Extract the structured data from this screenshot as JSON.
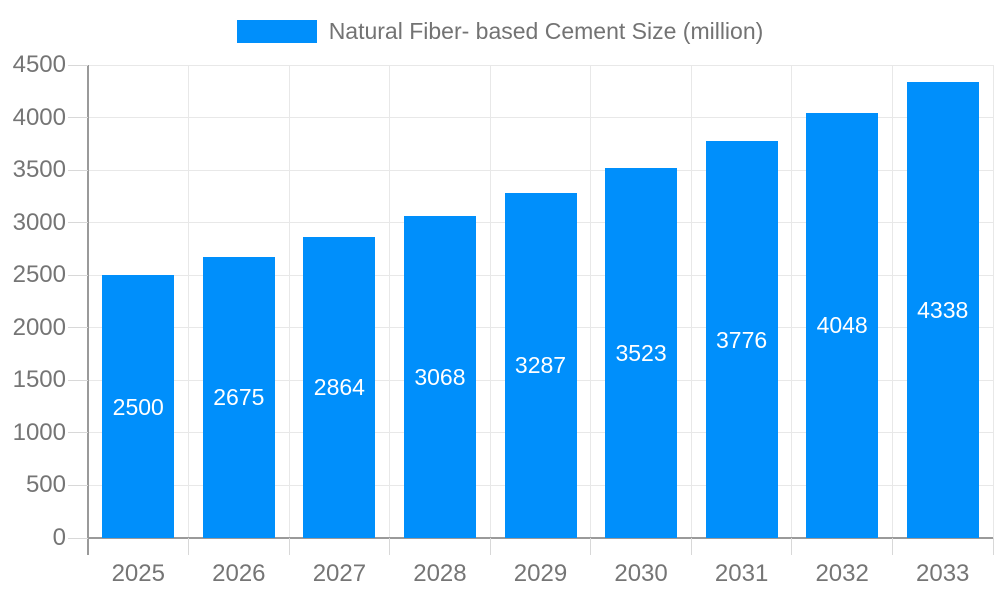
{
  "legend": {
    "label": "Natural Fiber- based Cement Size (million)"
  },
  "colors": {
    "bar": "#008FFB",
    "grid": "#e8e8e8",
    "axis": "#9a9a9a",
    "tick": "#d8d8d8",
    "axis_text": "#757575",
    "value_text": "#ffffff",
    "legend_text": "#737373"
  },
  "chart_data": {
    "type": "bar",
    "title": "Natural Fiber- based Cement Size (million)",
    "categories": [
      "2025",
      "2026",
      "2027",
      "2028",
      "2029",
      "2030",
      "2031",
      "2032",
      "2033"
    ],
    "values": [
      2500,
      2675,
      2864,
      3068,
      3287,
      3523,
      3776,
      4048,
      4338
    ],
    "series": [
      {
        "name": "Natural Fiber- based Cement Size (million)",
        "values": [
          2500,
          2675,
          2864,
          3068,
          3287,
          3523,
          3776,
          4048,
          4338
        ]
      }
    ],
    "data_labels": [
      "2500",
      "2675",
      "2864",
      "3068",
      "3287",
      "3523",
      "3776",
      "4048",
      "4338"
    ],
    "xlabel": "",
    "ylabel": "",
    "ylim": [
      0,
      4500
    ],
    "ytick_step": 500,
    "yticks": [
      "0",
      "500",
      "1000",
      "1500",
      "2000",
      "2500",
      "3000",
      "3500",
      "4000",
      "4500"
    ],
    "grid": true,
    "legend_position": "top"
  }
}
